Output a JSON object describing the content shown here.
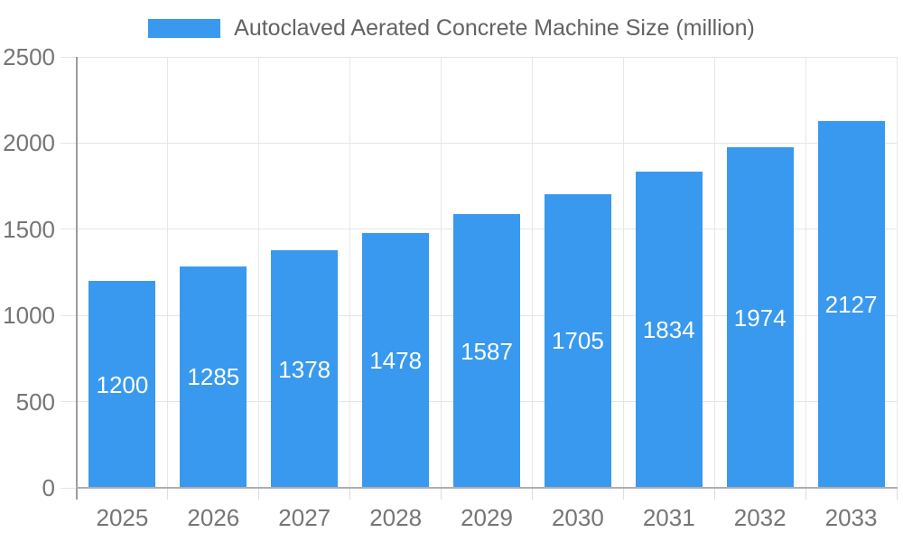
{
  "legend": {
    "label": "Autoclaved Aerated Concrete Machine Size (million)",
    "swatch_color": "#3999ee"
  },
  "chart_data": {
    "type": "bar",
    "title": "Autoclaved Aerated Concrete Machine Size (million)",
    "categories": [
      "2025",
      "2026",
      "2027",
      "2028",
      "2029",
      "2030",
      "2031",
      "2032",
      "2033"
    ],
    "values": [
      1200,
      1285,
      1378,
      1478,
      1587,
      1705,
      1834,
      1974,
      2127
    ],
    "xlabel": "",
    "ylabel": "",
    "ylim": [
      0,
      2500
    ],
    "ytick_interval": 500,
    "ytick_labels": [
      "0",
      "500",
      "1000",
      "1500",
      "2000",
      "2500"
    ],
    "grid": true,
    "legend_position": "top",
    "bar_color": "#3999ee",
    "value_label_color": "#ffffff"
  },
  "colors": {
    "bar": "#3999ee",
    "grid": "#e5e5e5",
    "axis": "#a4a4a4",
    "tick_label": "#757575",
    "legend_text": "#636363",
    "value_label": "#ffffff",
    "background": "#ffffff"
  }
}
